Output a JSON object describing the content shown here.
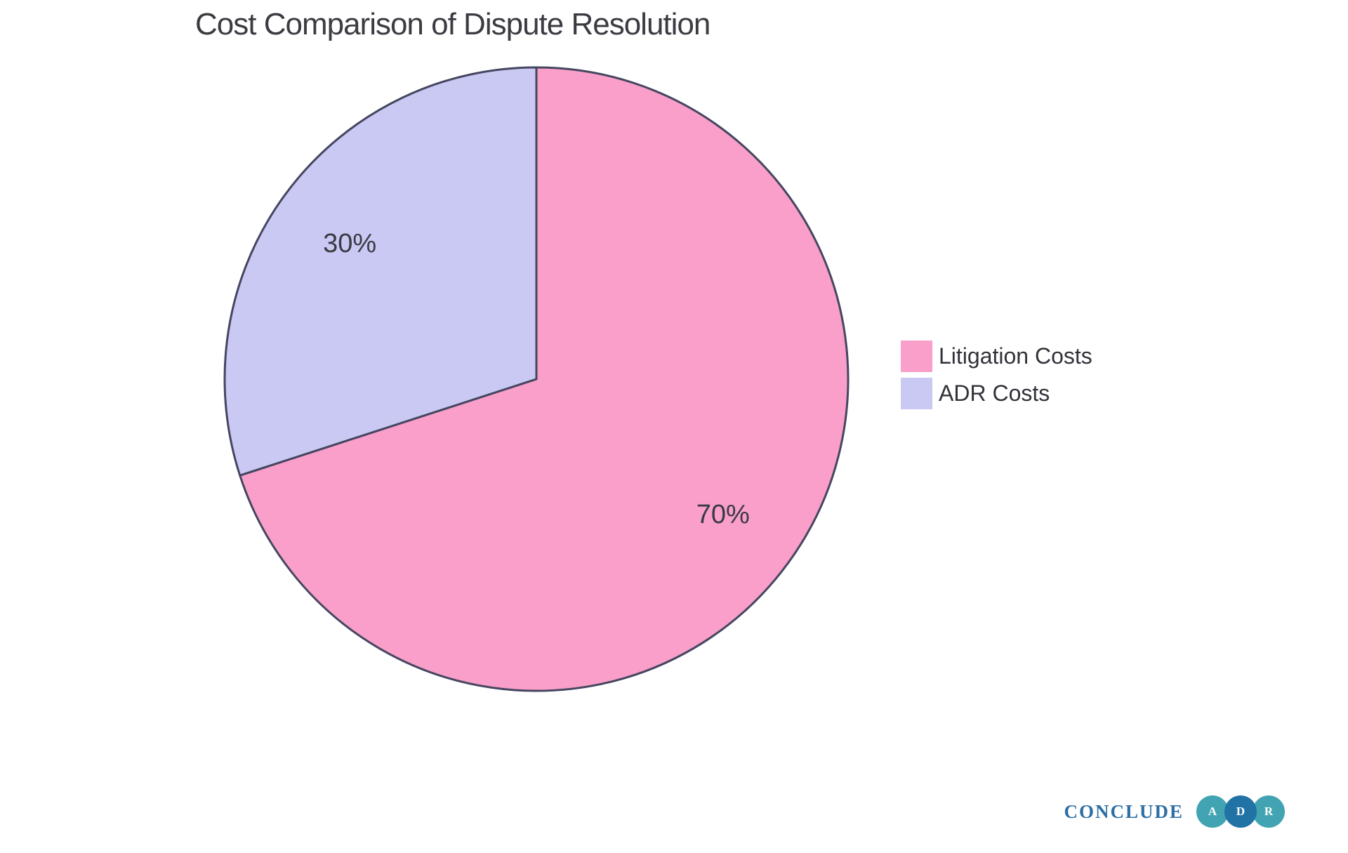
{
  "title": "Cost Comparison of Dispute Resolution",
  "chart_data": {
    "type": "pie",
    "labels": [
      "Litigation Costs",
      "ADR Costs"
    ],
    "values": [
      70,
      30
    ],
    "slice_labels": [
      "70%",
      "30%"
    ],
    "colors": [
      "#f99fc9",
      "#c9c9f3"
    ],
    "outline_color": "#454660",
    "slice_label_color": "#3a3a43",
    "title": "Cost Comparison of Dispute Resolution",
    "legend_position": "right",
    "start_angle_deg": 0,
    "direction": "clockwise",
    "grid": false
  },
  "legend": {
    "items": [
      {
        "label": "Litigation Costs",
        "color": "#f99fc9"
      },
      {
        "label": "ADR Costs",
        "color": "#c9c9f3"
      }
    ]
  },
  "watermark": {
    "brand": "CONCLUDE",
    "brand_color": "#2d6ea5",
    "circles": [
      {
        "letter": "A",
        "color": "#42a4b2"
      },
      {
        "letter": "D",
        "color": "#2273a5"
      },
      {
        "letter": "R",
        "color": "#42a4b2"
      }
    ]
  }
}
